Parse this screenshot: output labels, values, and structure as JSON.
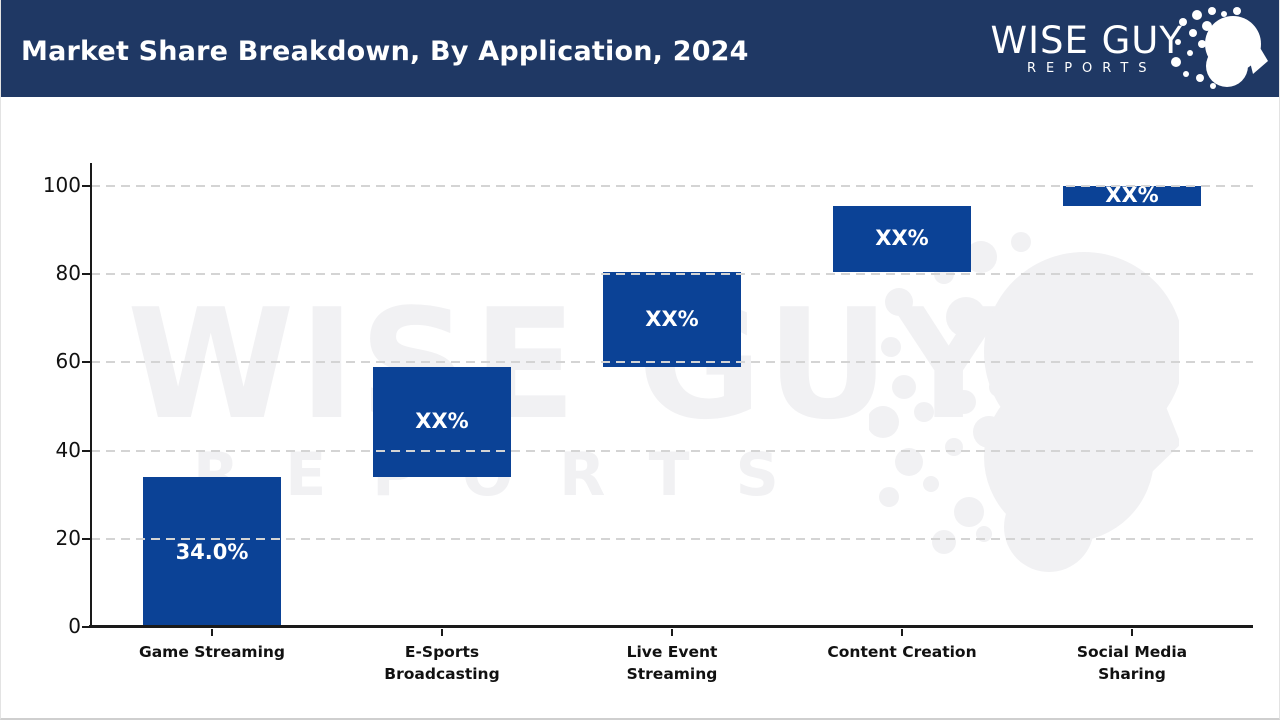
{
  "header": {
    "title": "Market Share Breakdown, By Application, 2024",
    "logo": {
      "wordmark": "WISE GUY",
      "subtext": "REPORTS"
    }
  },
  "watermark": {
    "wordmark": "WISE GUY",
    "subtext": "REPORTS"
  },
  "colors": {
    "header_bg": "#1f3864",
    "bar": "#0b4296",
    "gridline": "#d4d4d4",
    "watermark": "#f1f1f3",
    "axis": "#1a1a1a"
  },
  "chart_data": {
    "type": "bar",
    "subtype": "waterfall",
    "title": "Market Share Breakdown, By Application, 2024",
    "unit": "percent market share",
    "categories": [
      "Game Streaming",
      "E-Sports Broadcasting",
      "Live Event Streaming",
      "Content Creation",
      "Social Media Sharing"
    ],
    "category_label_lines": [
      [
        "Game Streaming"
      ],
      [
        "E-Sports",
        "Broadcasting"
      ],
      [
        "Live Event",
        "Streaming"
      ],
      [
        "Content Creation"
      ],
      [
        "Social Media",
        "Sharing"
      ]
    ],
    "segments": [
      {
        "category": "Game Streaming",
        "start": 0,
        "end": 34,
        "value_label": "34.0%"
      },
      {
        "category": "E-Sports Broadcasting",
        "start": 34,
        "end": 59,
        "value_label": "XX%"
      },
      {
        "category": "Live Event Streaming",
        "start": 59,
        "end": 80.5,
        "value_label": "XX%"
      },
      {
        "category": "Content Creation",
        "start": 80.5,
        "end": 95.5,
        "value_label": "XX%"
      },
      {
        "category": "Social Media Sharing",
        "start": 95.5,
        "end": 100,
        "value_label": "XX%"
      }
    ],
    "y_ticks": [
      0,
      20,
      40,
      60,
      80,
      100
    ],
    "ylim": [
      0,
      105
    ],
    "xlabel": "",
    "ylabel": "",
    "legend": "none",
    "grid": "horizontal-dashed"
  }
}
